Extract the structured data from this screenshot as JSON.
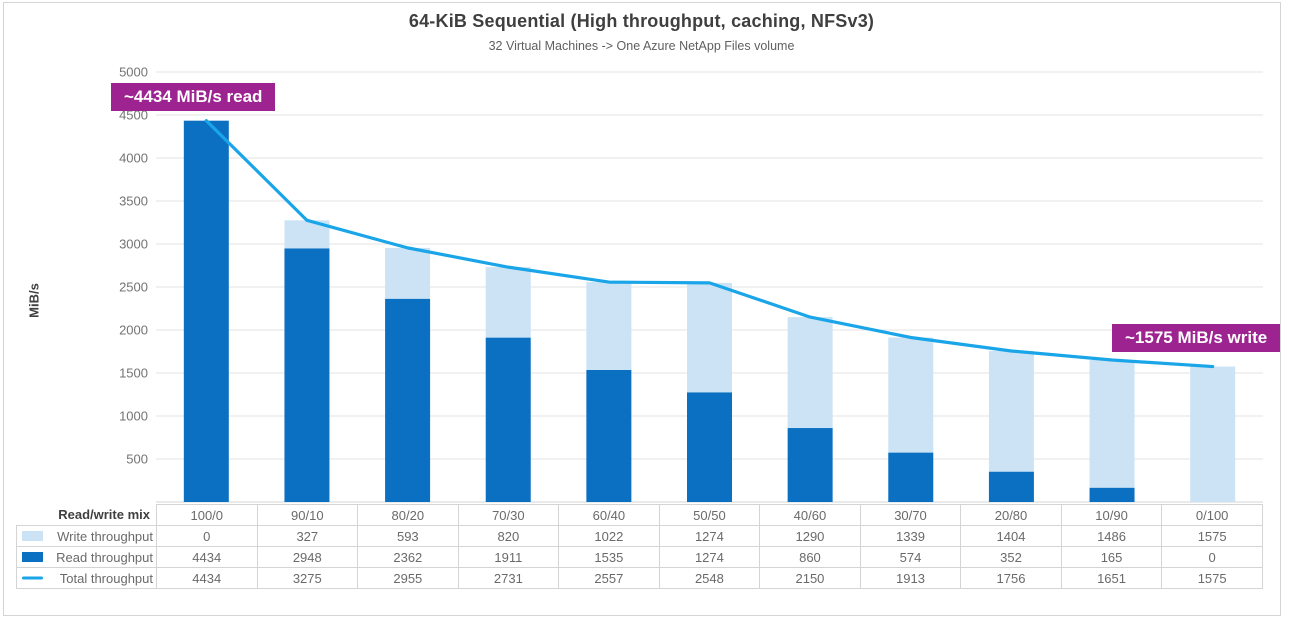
{
  "frame": {
    "border_color": "#D4D4D4",
    "background": "#FFFFFF"
  },
  "header": {
    "title": "64-KiB Sequential (High throughput, caching, NFSv3)",
    "subtitle": "32 Virtual Machines -> One Azure NetApp Files volume"
  },
  "annotations": {
    "read": {
      "text": "~4434 MiB/s read",
      "bg_color": "#9C2390",
      "text_color": "#FFFFFF"
    },
    "write": {
      "text": "~1575 MiB/s write",
      "bg_color": "#9C2390",
      "text_color": "#FFFFFF"
    }
  },
  "table": {
    "corner_label": "Read/write mix"
  },
  "chart_data": {
    "type": "bar",
    "subtype": "stacked-column-with-line-overlay-and-data-table",
    "title": "64-KiB Sequential (High throughput, caching, NFSv3)",
    "subtitle": "32 Virtual Machines -> One Azure NetApp Files volume",
    "xlabel": "Read/write mix",
    "ylabel": "MiB/s",
    "ylim": [
      0,
      5000
    ],
    "ytick_step": 500,
    "yticks": [
      500,
      1000,
      1500,
      2000,
      2500,
      3000,
      3500,
      4000,
      4500,
      5000
    ],
    "grid": "horizontal",
    "gridline_color": "#E3E3E3",
    "legend_position": "data-table-left",
    "categories": [
      "100/0",
      "90/10",
      "80/20",
      "70/30",
      "60/40",
      "50/50",
      "40/60",
      "30/70",
      "20/80",
      "10/90",
      "0/100"
    ],
    "series": [
      {
        "name": "Write throughput",
        "type": "bar",
        "role": "stack-top",
        "color": "#CBE3F5",
        "values": [
          0,
          327,
          593,
          820,
          1022,
          1274,
          1290,
          1339,
          1404,
          1486,
          1575
        ]
      },
      {
        "name": "Read throughput",
        "type": "bar",
        "role": "stack-bottom",
        "color": "#0C70C2",
        "values": [
          4434,
          2948,
          2362,
          1911,
          1535,
          1274,
          860,
          574,
          352,
          165,
          0
        ]
      },
      {
        "name": "Total throughput",
        "type": "line",
        "role": "overlay",
        "color": "#1AA5E8",
        "values": [
          4434,
          3275,
          2955,
          2731,
          2557,
          2548,
          2150,
          1913,
          1756,
          1651,
          1575
        ]
      }
    ]
  }
}
